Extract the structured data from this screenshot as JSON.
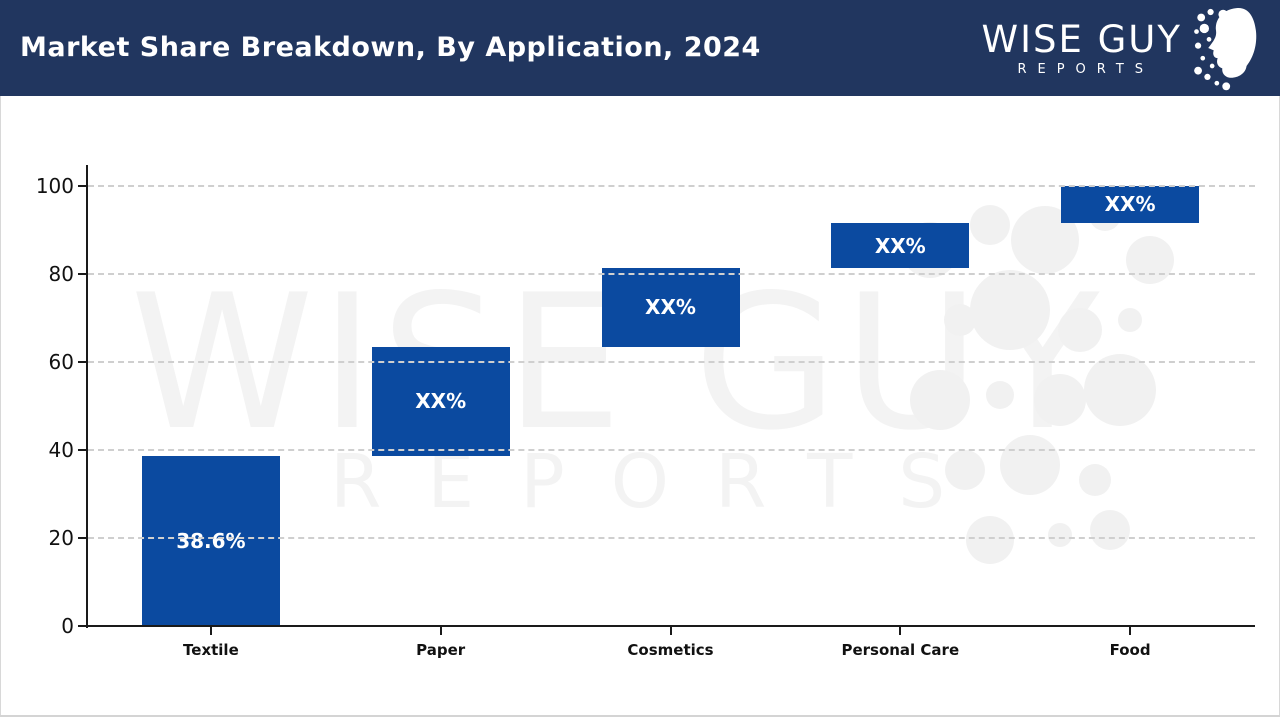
{
  "header": {
    "title": "Market Share Breakdown, By Application, 2024",
    "bg_color": "#21365f",
    "logo": {
      "line1": "WISE GUY",
      "line2": "REPORTS"
    }
  },
  "watermark": {
    "line1": "WISE GUY",
    "line2": "REPORTS"
  },
  "chart_data": {
    "type": "bar",
    "subtype": "waterfall",
    "title": "Market Share Breakdown, By Application, 2024",
    "xlabel": "",
    "ylabel": "",
    "categories": [
      "Textile",
      "Paper",
      "Cosmetics",
      "Personal Care",
      "Food"
    ],
    "segments": [
      {
        "category": "Textile",
        "start": 0,
        "end": 38.6,
        "label": "38.6%"
      },
      {
        "category": "Paper",
        "start": 38.6,
        "end": 63.5,
        "label": "XX%"
      },
      {
        "category": "Cosmetics",
        "start": 63.5,
        "end": 81.3,
        "label": "XX%"
      },
      {
        "category": "Personal Care",
        "start": 81.3,
        "end": 91.6,
        "label": "XX%"
      },
      {
        "category": "Food",
        "start": 91.6,
        "end": 100,
        "label": "XX%"
      }
    ],
    "ylim": [
      0,
      100
    ],
    "yticks": [
      0,
      20,
      40,
      60,
      80,
      100
    ],
    "grid": "horizontal-dashed",
    "legend": "none",
    "bar_color": "#0b4aa0",
    "bar_label_color": "#ffffff",
    "axis_color": "#1a1a1a"
  }
}
